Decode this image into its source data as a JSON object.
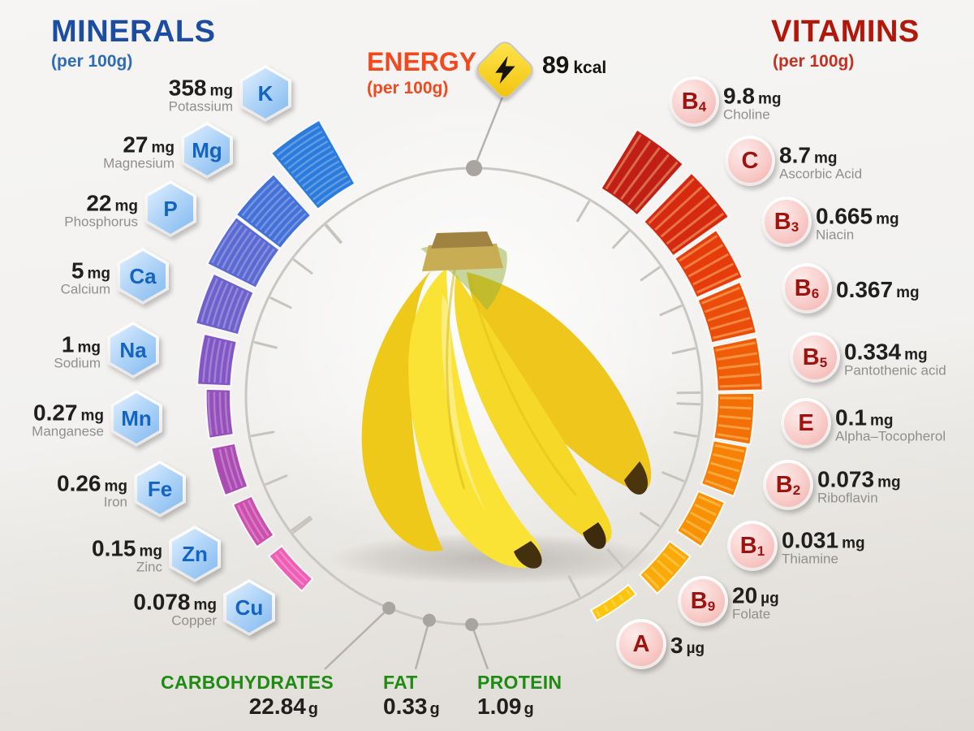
{
  "energy": {
    "title": "ENERGY",
    "subtitle": "(per 100g)",
    "value": "89",
    "unit": "kcal",
    "title_color": "#f3481d",
    "icon": "lightning-bolt-icon"
  },
  "minerals": {
    "title": "MINERALS",
    "subtitle": "(per 100g)",
    "title_color": "#1c4da0",
    "subtitle_color": "#2e6cb5",
    "items": [
      {
        "symbol": "K",
        "value": "358",
        "unit": "mg",
        "name": "Potassium",
        "color": "#2b7bdc"
      },
      {
        "symbol": "Mg",
        "value": "27",
        "unit": "mg",
        "name": "Magnesium",
        "color": "#4471d8"
      },
      {
        "symbol": "P",
        "value": "22",
        "unit": "mg",
        "name": "Phosphorus",
        "color": "#5b69d2"
      },
      {
        "symbol": "Ca",
        "value": "5",
        "unit": "mg",
        "name": "Calcium",
        "color": "#6f61cc"
      },
      {
        "symbol": "Na",
        "value": "1",
        "unit": "mg",
        "name": "Sodium",
        "color": "#8257c5"
      },
      {
        "symbol": "Mn",
        "value": "0.27",
        "unit": "mg",
        "name": "Manganese",
        "color": "#9550bb"
      },
      {
        "symbol": "Fe",
        "value": "0.26",
        "unit": "mg",
        "name": "Iron",
        "color": "#ab4cb4"
      },
      {
        "symbol": "Zn",
        "value": "0.15",
        "unit": "mg",
        "name": "Zinc",
        "color": "#cc4fae"
      },
      {
        "symbol": "Cu",
        "value": "0.078",
        "unit": "mg",
        "name": "Copper",
        "color": "#ee5eb5"
      }
    ]
  },
  "vitamins": {
    "title": "VITAMINS",
    "subtitle": "(per 100g)",
    "title_color": "#b2170c",
    "subtitle_color": "#c23122",
    "items": [
      {
        "symbol": "B",
        "sub": "4",
        "value": "9.8",
        "unit": "mg",
        "name": "Choline",
        "color": "#c11f15"
      },
      {
        "symbol": "C",
        "sub": "",
        "value": "8.7",
        "unit": "mg",
        "name": "Ascorbic Acid",
        "color": "#d62a10"
      },
      {
        "symbol": "B",
        "sub": "3",
        "value": "0.665",
        "unit": "mg",
        "name": "Niacin",
        "color": "#e63c0b"
      },
      {
        "symbol": "B",
        "sub": "6",
        "value": "0.367",
        "unit": "mg",
        "name": "",
        "color": "#ec4c09"
      },
      {
        "symbol": "B",
        "sub": "5",
        "value": "0.334",
        "unit": "mg",
        "name": "Pantothenic acid",
        "color": "#f05d07"
      },
      {
        "symbol": "E",
        "sub": "",
        "value": "0.1",
        "unit": "mg",
        "name": "Alpha–Tocopherol",
        "color": "#f37006"
      },
      {
        "symbol": "B",
        "sub": "2",
        "value": "0.073",
        "unit": "mg",
        "name": "Riboflavin",
        "color": "#f68105"
      },
      {
        "symbol": "B",
        "sub": "1",
        "value": "0.031",
        "unit": "mg",
        "name": "Thiamine",
        "color": "#f89204"
      },
      {
        "symbol": "B",
        "sub": "9",
        "value": "20",
        "unit": "µg",
        "name": "Folate",
        "color": "#fba906"
      },
      {
        "symbol": "A",
        "sub": "",
        "value": "3",
        "unit": "µg",
        "name": "",
        "color": "#fdc40c"
      }
    ]
  },
  "macros": {
    "label_color": "#1e8c12",
    "items": [
      {
        "label": "CARBOHYDRATES",
        "value": "22.84",
        "unit": "g"
      },
      {
        "label": "FAT",
        "value": "0.33",
        "unit": "g"
      },
      {
        "label": "PROTEIN",
        "value": "1.09",
        "unit": "g"
      }
    ]
  },
  "chart_data": {
    "type": "bar",
    "variant": "radial-ring",
    "center_item": "banana-bunch",
    "energy_kcal_per_100g": 89,
    "series": [
      {
        "name": "Minerals (mg per 100g)",
        "categories": [
          "Potassium",
          "Magnesium",
          "Phosphorus",
          "Calcium",
          "Sodium",
          "Manganese",
          "Iron",
          "Zinc",
          "Copper"
        ],
        "values": [
          358,
          27,
          22,
          5,
          1,
          0.27,
          0.26,
          0.15,
          0.078
        ],
        "colors": [
          "#2b7bdc",
          "#4471d8",
          "#5b69d2",
          "#6f61cc",
          "#8257c5",
          "#9550bb",
          "#ab4cb4",
          "#cc4fae",
          "#ee5eb5"
        ]
      },
      {
        "name": "Vitamins (mg per 100g)",
        "categories": [
          "B4 Choline",
          "C Ascorbic Acid",
          "B3 Niacin",
          "B6",
          "B5 Pantothenic acid",
          "E Alpha–Tocopherol",
          "B2 Riboflavin",
          "B1 Thiamine",
          "B9 Folate",
          "A"
        ],
        "values": [
          9.8,
          8.7,
          0.665,
          0.367,
          0.334,
          0.1,
          0.073,
          0.031,
          0.02,
          0.003
        ],
        "colors": [
          "#c11f15",
          "#d62a10",
          "#e63c0b",
          "#ec4c09",
          "#f05d07",
          "#f37006",
          "#f68105",
          "#f89204",
          "#fba906",
          "#fdc40c"
        ]
      }
    ],
    "macros_g_per_100g": {
      "carbohydrates": 22.84,
      "fat": 0.33,
      "protein": 1.09
    },
    "scale": "log",
    "legend_position": "around-ring",
    "grid": "tick-circle"
  }
}
